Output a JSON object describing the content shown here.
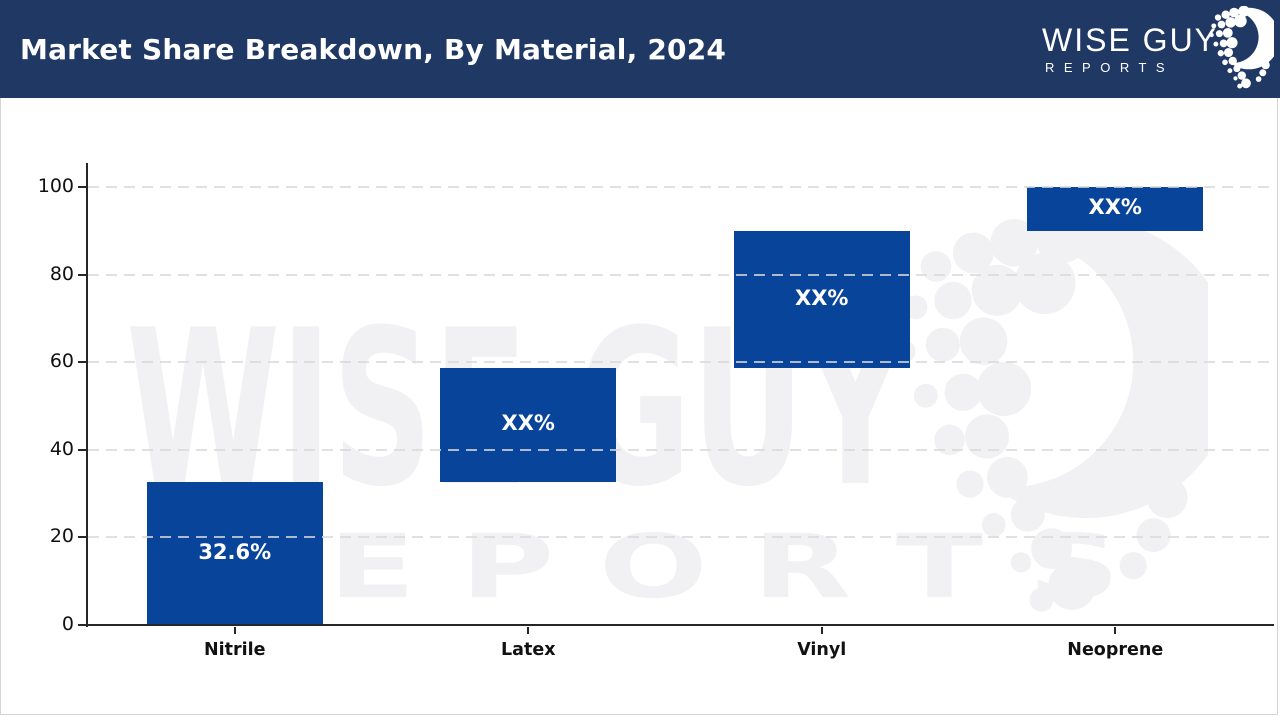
{
  "header": {
    "title": "Market Share Breakdown, By Material, 2024",
    "logo": {
      "line1": "WISE GUY",
      "line2": "REPORTS"
    }
  },
  "watermark": {
    "line1": "WISE GUY",
    "line2": "R E P O R T S"
  },
  "colors": {
    "header_bg": "#1f3864",
    "bar": "#084499",
    "grid": "#d9d9d9",
    "axis": "#262626",
    "value_label": "#ffffff",
    "watermark": "#f1f1f3"
  },
  "chart_data": {
    "type": "bar",
    "subtype": "waterfall",
    "title": "Market Share Breakdown, By Material, 2024",
    "categories": [
      "Nitrile",
      "Latex",
      "Vinyl",
      "Neoprene"
    ],
    "segments": [
      {
        "category": "Nitrile",
        "start": 0,
        "end": 32.6,
        "value": 32.6,
        "label": "32.6%"
      },
      {
        "category": "Latex",
        "start": 32.6,
        "end": 58.6,
        "value": 26.0,
        "label": "XX%"
      },
      {
        "category": "Vinyl",
        "start": 58.6,
        "end": 90.0,
        "value": 31.4,
        "label": "XX%"
      },
      {
        "category": "Neoprene",
        "start": 90.0,
        "end": 100.0,
        "value": 10.0,
        "label": "XX%"
      }
    ],
    "xlabel": "",
    "ylabel": "",
    "yticks": [
      0,
      20,
      40,
      60,
      80,
      100
    ],
    "ylim": [
      0,
      105.5
    ],
    "grid": "dashed-horizontal",
    "legend": null
  }
}
